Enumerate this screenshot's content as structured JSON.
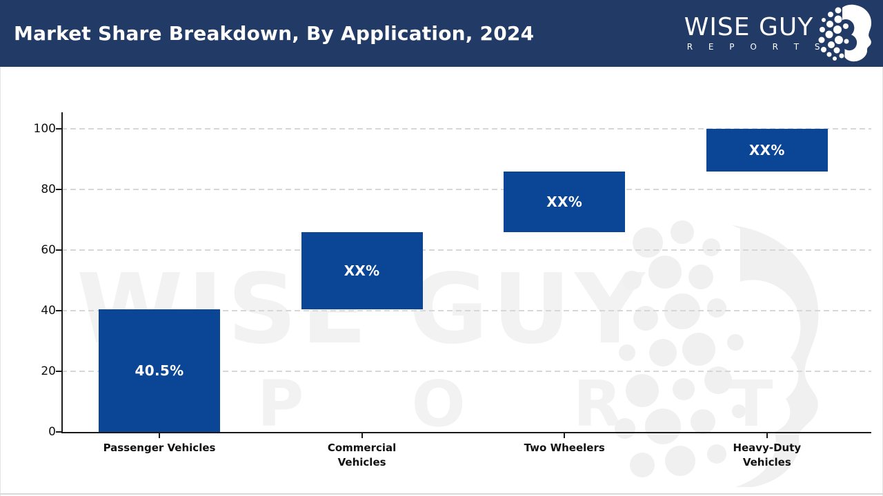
{
  "header": {
    "title": "Market Share Breakdown, By Application, 2024",
    "logo_line1": "WISE GUY",
    "logo_line2": "R E P O R T S"
  },
  "watermark": {
    "line1": "WISE GUY",
    "line2": "P O R T S"
  },
  "colors": {
    "header_bg": "#213A66",
    "bar": "#0B4696",
    "grid": "#D7D7D7",
    "axis": "#1A1A1A",
    "bar_label": "#FFFFFF",
    "watermark": "#F2F2F2"
  },
  "chart_data": {
    "type": "bar",
    "subtype": "waterfall-breakdown",
    "title": "Market Share Breakdown, By Application, 2024",
    "categories": [
      [
        "Passenger Vehicles"
      ],
      [
        "Commercial",
        "Vehicles"
      ],
      [
        "Two Wheelers"
      ],
      [
        "Heavy-Duty",
        "Vehicles"
      ]
    ],
    "bars": [
      {
        "category": "Passenger Vehicles",
        "start": 0,
        "end": 40.5,
        "label": "40.5%"
      },
      {
        "category": "Commercial Vehicles",
        "start": 40.5,
        "end": 66,
        "label": "XX%"
      },
      {
        "category": "Two Wheelers",
        "start": 66,
        "end": 86,
        "label": "XX%"
      },
      {
        "category": "Heavy-Duty Vehicles",
        "start": 86,
        "end": 100,
        "label": "XX%"
      }
    ],
    "ylim": [
      0,
      100
    ],
    "yticks": [
      0,
      20,
      40,
      60,
      80,
      100
    ],
    "xlabel": "",
    "ylabel": "",
    "grid": "horizontal-dashed",
    "legend": "none"
  }
}
